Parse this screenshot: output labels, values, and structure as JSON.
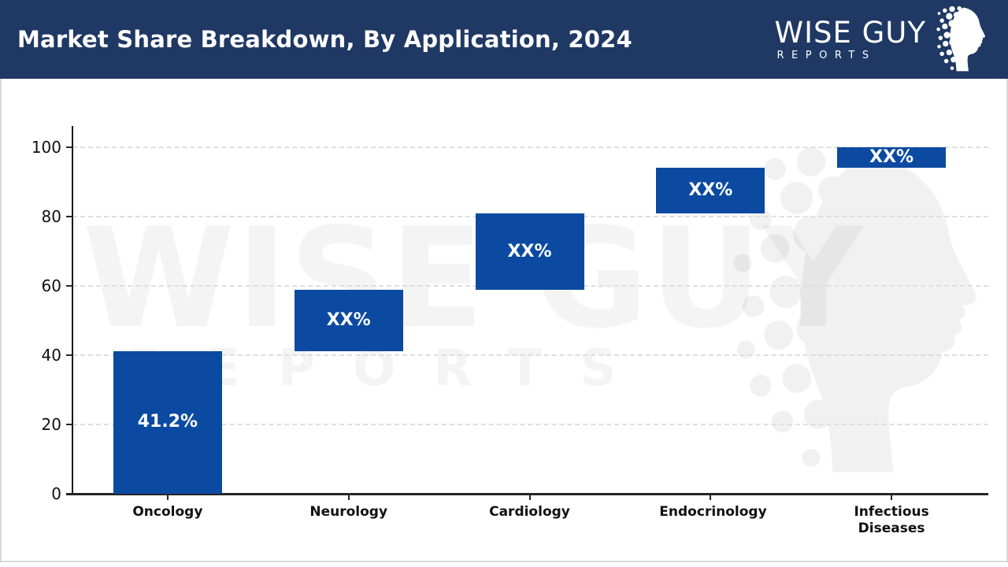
{
  "header": {
    "title": "Market Share Breakdown, By Application, 2024",
    "logo": {
      "line1": "WISE GUY",
      "line2": "REPORTS"
    }
  },
  "watermark": {
    "line1": "WISE GUY",
    "line2": "REPORTS"
  },
  "colors": {
    "header_bg": "#1f3864",
    "bar": "#0b4aa0",
    "grid": "#dedede",
    "axis": "#262626",
    "tick_text": "#111111",
    "bar_label_text": "#ffffff",
    "card_border": "#d9d9d9"
  },
  "chart_data": {
    "type": "bar",
    "subtype": "waterfall",
    "title": "Market Share Breakdown, By Application, 2024",
    "categories": [
      "Oncology",
      "Neurology",
      "Cardiology",
      "Endocrinology",
      "Infectious Diseases"
    ],
    "segments": [
      {
        "start": 0,
        "end": 41.2,
        "label": "41.2%"
      },
      {
        "start": 41.2,
        "end": 58.8,
        "label": "XX%"
      },
      {
        "start": 58.8,
        "end": 80.8,
        "label": "XX%"
      },
      {
        "start": 80.8,
        "end": 94.1,
        "label": "XX%"
      },
      {
        "start": 94.1,
        "end": 100,
        "label": "XX%"
      }
    ],
    "ylim": [
      0,
      100
    ],
    "yticks": [
      0,
      20,
      40,
      60,
      80,
      100
    ],
    "xlabel": "",
    "ylabel": "",
    "grid": "horizontal-dashed",
    "legend": "none"
  }
}
